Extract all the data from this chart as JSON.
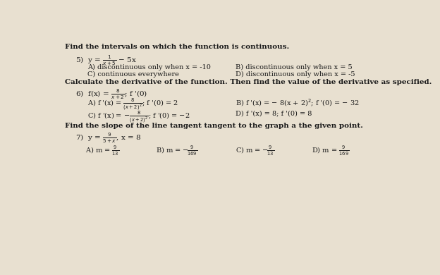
{
  "bg_color": "#e8e0d0",
  "text_color": "#1a1a1a",
  "title1": "Find the intervals on which the function is continuous.",
  "title2": "Calculate the derivative of the function. Then find the value of the derivative as specified.",
  "title3": "Find the slope of the line tangent tangent to the graph a the given point."
}
